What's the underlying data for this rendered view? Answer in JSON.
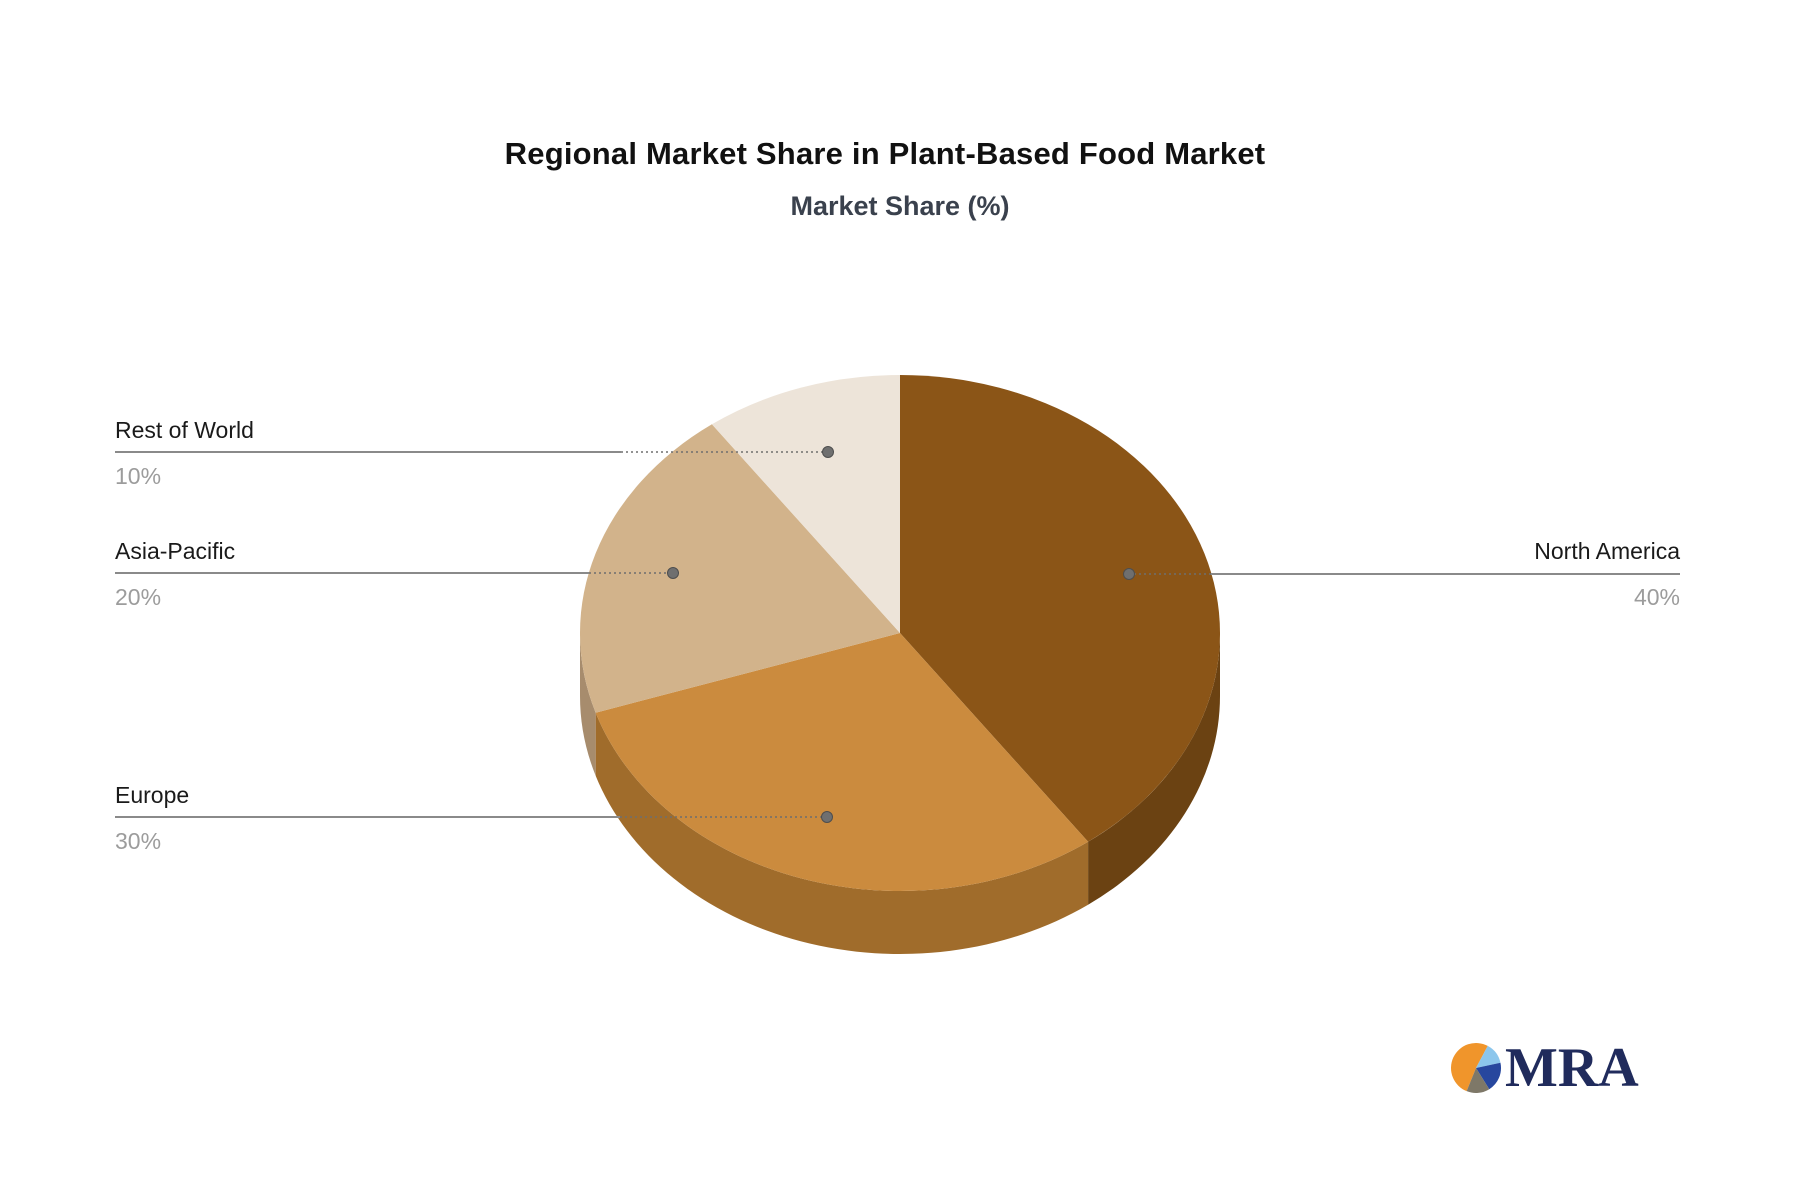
{
  "chart": {
    "title": "Regional Market Share in Plant-Based Food Market",
    "subtitle": "Market Share (%)"
  },
  "chart_data": {
    "type": "pie",
    "style": "3d",
    "title": "Regional Market Share in Plant-Based Food Market",
    "subtitle": "Market Share (%)",
    "unit": "%",
    "start_angle_deg": 90,
    "direction": "clockwise",
    "legend_position": "callout-labels",
    "slices": [
      {
        "label": "North America",
        "value": 40,
        "display": "40%",
        "color": "#8B5517",
        "side_color": "#6B4212"
      },
      {
        "label": "Europe",
        "value": 30,
        "display": "30%",
        "color": "#CB8B3E",
        "side_color": "#A06C2B"
      },
      {
        "label": "Asia-Pacific",
        "value": 20,
        "display": "20%",
        "color": "#D2B38B",
        "side_color": "#A78C6D"
      },
      {
        "label": "Rest of World",
        "value": 10,
        "display": "10%",
        "color": "#EDE4D9",
        "side_color": "#C9BCAC"
      }
    ],
    "callout_line_color": "#8A8A8A",
    "callout_dot_color": "#6F6F6F",
    "label_color": "#1A1A1A",
    "percent_color": "#9C9C9C"
  },
  "logo": {
    "text": "MRA",
    "icon": "pie-chart-icon",
    "text_color": "#202B5C",
    "icon_colors": [
      "#F0952B",
      "#8CC6EC",
      "#27479E",
      "#7E7868"
    ]
  }
}
